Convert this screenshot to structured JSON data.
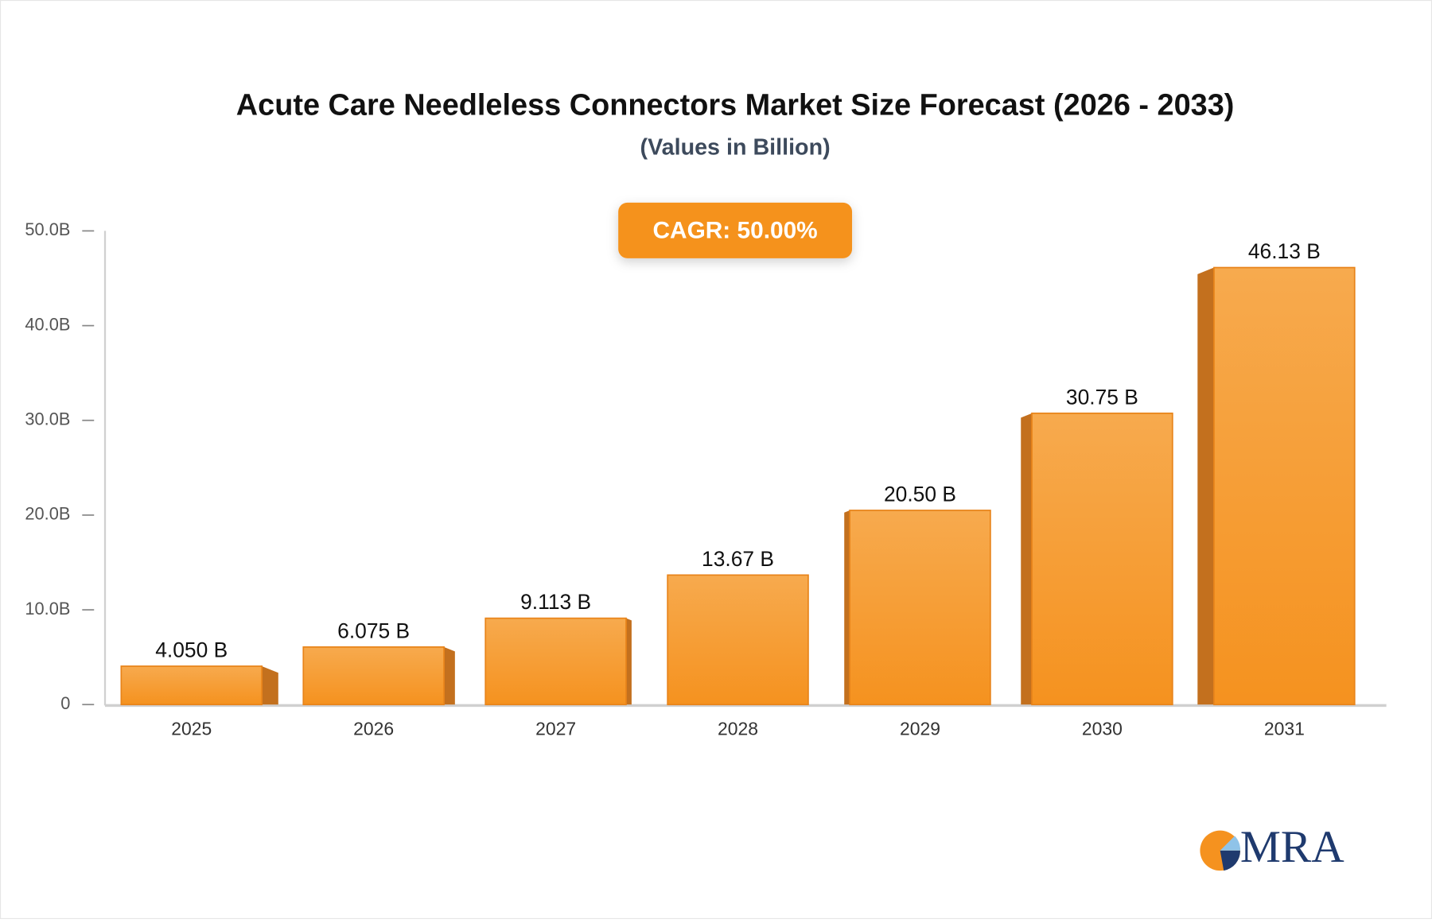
{
  "chart_data": {
    "type": "bar",
    "title": "Acute Care Needleless Connectors Market Size Forecast (2026 - 2033)",
    "subtitle": "(Values in Billion)",
    "annotation": "CAGR: 50.00%",
    "logo": "MRA",
    "categories": [
      "2025",
      "2026",
      "2027",
      "2028",
      "2029",
      "2030",
      "2031"
    ],
    "values": [
      4.05,
      6.075,
      9.113,
      13.67,
      20.5,
      30.75,
      46.13
    ],
    "value_labels": [
      "4.050 B",
      "6.075 B",
      "9.113 B",
      "13.67 B",
      "20.50 B",
      "30.75 B",
      "46.13 B"
    ],
    "color": "#f5951f",
    "ylim": [
      0,
      50
    ],
    "yticks": [
      0,
      {
        "value": 10,
        "label": "10.0B"
      },
      {
        "value": 20,
        "label": "20.0B"
      },
      {
        "value": 30,
        "label": "30.0B"
      },
      {
        "value": 40,
        "label": "40.0B"
      },
      {
        "value": 50,
        "label": "50.0B"
      }
    ],
    "grid": false
  }
}
